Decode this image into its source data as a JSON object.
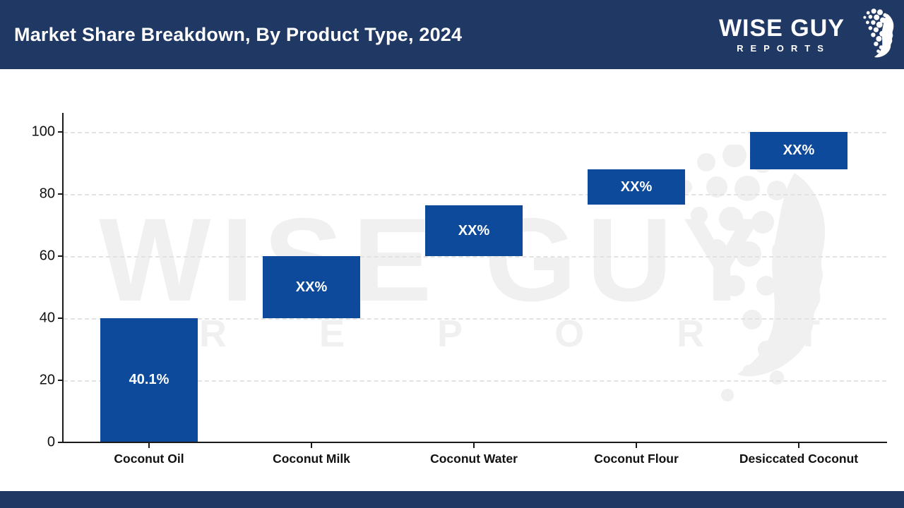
{
  "header": {
    "title": "Market Share Breakdown, By Product Type, 2024",
    "bg_color": "#203864",
    "logo": {
      "line1": "WISE GUY",
      "line2": "REPORTS"
    }
  },
  "footer": {
    "bg_color": "#203864"
  },
  "chart_data": {
    "type": "bar",
    "subtype": "waterfall",
    "title": "Market Share Breakdown, By Product Type, 2024",
    "categories": [
      "Coconut Oil",
      "Coconut Milk",
      "Coconut Water",
      "Coconut Flour",
      "Desiccated Coconut"
    ],
    "segments": [
      {
        "category": "Coconut Oil",
        "start": 0,
        "end": 40.1,
        "label": "40.1%"
      },
      {
        "category": "Coconut Milk",
        "start": 40,
        "end": 60,
        "label": "XX%"
      },
      {
        "category": "Coconut Water",
        "start": 60,
        "end": 76.3,
        "label": "XX%"
      },
      {
        "category": "Coconut Flour",
        "start": 76.5,
        "end": 88,
        "label": "XX%"
      },
      {
        "category": "Desiccated Coconut",
        "start": 88,
        "end": 100,
        "label": "XX%"
      }
    ],
    "y_ticks": [
      0,
      20,
      40,
      60,
      80,
      100
    ],
    "ylim": [
      0,
      105
    ],
    "xlabel": "",
    "ylabel": "",
    "grid": "horizontal-dashed",
    "legend": "none",
    "bar_color": "#0d4a9c",
    "bar_label_color": "#ffffff",
    "watermark": {
      "line1": "WISE GUY",
      "line2": "R E P O R T S"
    }
  }
}
